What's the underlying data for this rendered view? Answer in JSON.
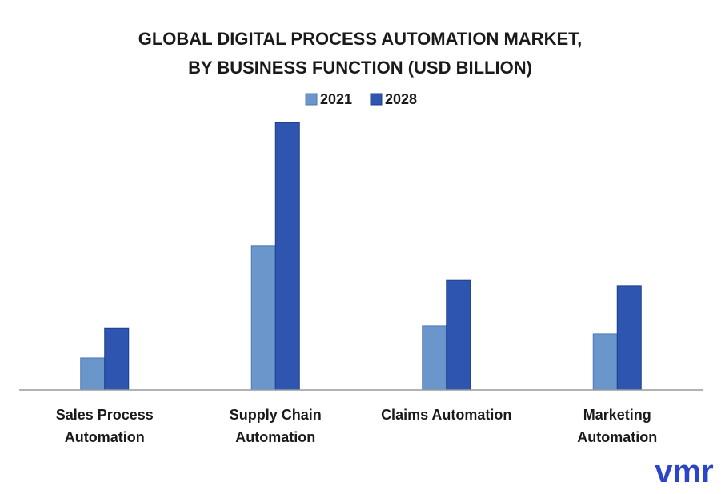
{
  "chart_data": {
    "type": "bar",
    "title": [
      "GLOBAL DIGITAL PROCESS AUTOMATION MARKET,",
      "BY BUSINESS FUNCTION (USD BILLION)"
    ],
    "categories": [
      [
        "Sales Process",
        "Automation"
      ],
      [
        "Supply Chain",
        "Automation"
      ],
      [
        "Claims Automation"
      ],
      [
        "Marketing",
        "Automation"
      ]
    ],
    "series": [
      {
        "name": "2021",
        "values": [
          1.2,
          5.4,
          2.4,
          2.1
        ],
        "color": "#6a96cc"
      },
      {
        "name": "2028",
        "values": [
          2.3,
          10.0,
          4.1,
          3.9
        ],
        "color": "#2e56b0"
      }
    ],
    "ylim": [
      0,
      10.4
    ],
    "grid": false,
    "legend": "top-center",
    "y_axis_visible": false
  },
  "logo": {
    "text": "vmr",
    "color": "#2b45c8"
  }
}
